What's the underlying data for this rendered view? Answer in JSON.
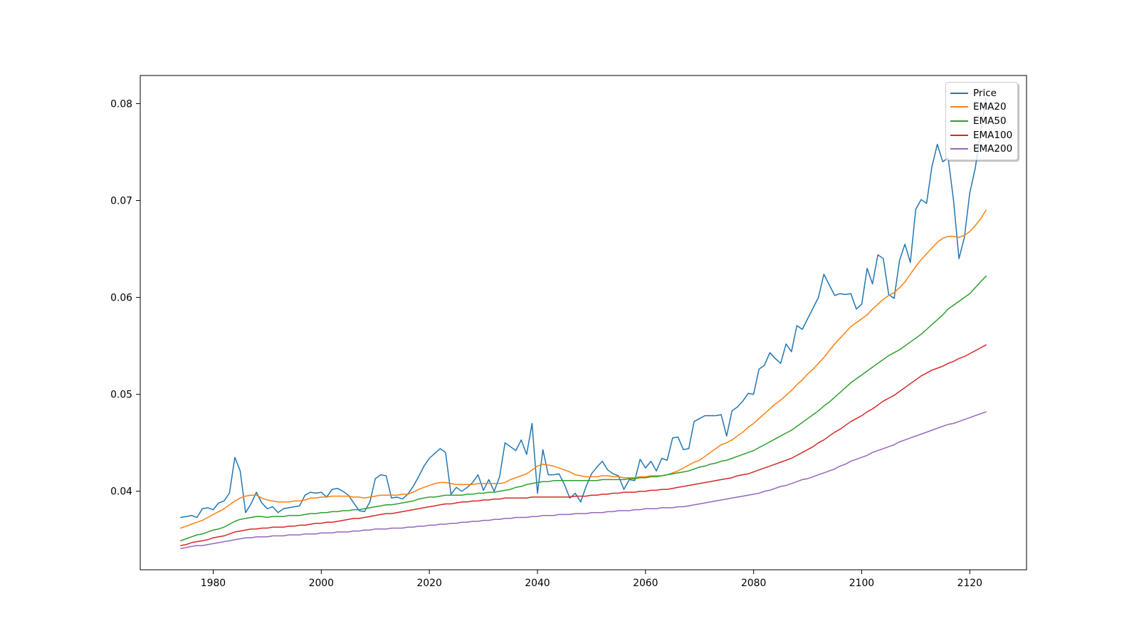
{
  "figure": {
    "background": "#ffffff"
  },
  "axes": {
    "x_ticks": [
      1980,
      2000,
      2020,
      2040,
      2060,
      2080,
      2100,
      2120
    ],
    "x_tick_labels": [
      "1980",
      "2000",
      "2020",
      "2040",
      "2060",
      "2080",
      "2100",
      "2120"
    ],
    "y_ticks": [
      0.04,
      0.05,
      0.06,
      0.07,
      0.08
    ],
    "y_tick_labels": [
      "0.04",
      "0.05",
      "0.06",
      "0.07",
      "0.08"
    ]
  },
  "legend": {
    "position": "upper right",
    "entries": [
      "Price",
      "EMA20",
      "EMA50",
      "EMA100",
      "EMA200"
    ]
  },
  "chart_data": {
    "type": "line",
    "title": "",
    "xlabel": "",
    "ylabel": "",
    "grid": false,
    "legend_position": "upper right",
    "xlim": [
      1966.5,
      2130.5
    ],
    "ylim": [
      0.0319,
      0.0829
    ],
    "x": [
      1974,
      1975,
      1976,
      1977,
      1978,
      1979,
      1980,
      1981,
      1982,
      1983,
      1984,
      1985,
      1986,
      1987,
      1988,
      1989,
      1990,
      1991,
      1992,
      1993,
      1994,
      1995,
      1996,
      1997,
      1998,
      1999,
      2000,
      2001,
      2002,
      2003,
      2004,
      2005,
      2006,
      2007,
      2008,
      2009,
      2010,
      2011,
      2012,
      2013,
      2014,
      2015,
      2016,
      2017,
      2018,
      2019,
      2020,
      2021,
      2022,
      2023,
      2024,
      2025,
      2026,
      2027,
      2028,
      2029,
      2030,
      2031,
      2032,
      2033,
      2034,
      2035,
      2036,
      2037,
      2038,
      2039,
      2040,
      2041,
      2042,
      2043,
      2044,
      2045,
      2046,
      2047,
      2048,
      2049,
      2050,
      2051,
      2052,
      2053,
      2054,
      2055,
      2056,
      2057,
      2058,
      2059,
      2060,
      2061,
      2062,
      2063,
      2064,
      2065,
      2066,
      2067,
      2068,
      2069,
      2070,
      2071,
      2072,
      2073,
      2074,
      2075,
      2076,
      2077,
      2078,
      2079,
      2080,
      2081,
      2082,
      2083,
      2084,
      2085,
      2086,
      2087,
      2088,
      2089,
      2090,
      2091,
      2092,
      2093,
      2094,
      2095,
      2096,
      2097,
      2098,
      2099,
      2100,
      2101,
      2102,
      2103,
      2104,
      2105,
      2106,
      2107,
      2108,
      2109,
      2110,
      2111,
      2112,
      2113,
      2114,
      2115,
      2116,
      2117,
      2118,
      2119,
      2120,
      2121,
      2122,
      2123
    ],
    "series": [
      {
        "name": "Price",
        "color": "#1f77b4",
        "values": [
          0.0373,
          0.0374,
          0.0375,
          0.0373,
          0.0382,
          0.0383,
          0.0381,
          0.0388,
          0.039,
          0.0398,
          0.0435,
          0.0421,
          0.0378,
          0.0387,
          0.0399,
          0.0388,
          0.0382,
          0.0384,
          0.0378,
          0.0382,
          0.0383,
          0.0384,
          0.0385,
          0.0396,
          0.0399,
          0.0398,
          0.0399,
          0.0394,
          0.0402,
          0.0403,
          0.04,
          0.0396,
          0.0388,
          0.038,
          0.0379,
          0.0389,
          0.0413,
          0.0417,
          0.0416,
          0.0393,
          0.0394,
          0.0392,
          0.0397,
          0.0405,
          0.0415,
          0.0426,
          0.0434,
          0.0439,
          0.0444,
          0.044,
          0.0397,
          0.0404,
          0.04,
          0.0404,
          0.0409,
          0.0417,
          0.0401,
          0.0412,
          0.04,
          0.0415,
          0.045,
          0.0446,
          0.0442,
          0.0453,
          0.0438,
          0.047,
          0.0398,
          0.0443,
          0.0417,
          0.0417,
          0.0418,
          0.0407,
          0.0393,
          0.0398,
          0.0389,
          0.0405,
          0.0418,
          0.0425,
          0.0431,
          0.0422,
          0.0418,
          0.0416,
          0.0402,
          0.0412,
          0.0411,
          0.0433,
          0.0424,
          0.0431,
          0.0421,
          0.0434,
          0.0432,
          0.0455,
          0.0456,
          0.0443,
          0.0444,
          0.0472,
          0.0475,
          0.0478,
          0.0478,
          0.0478,
          0.0479,
          0.0457,
          0.0483,
          0.0487,
          0.0493,
          0.0501,
          0.05,
          0.0526,
          0.053,
          0.0543,
          0.0537,
          0.0532,
          0.0552,
          0.0544,
          0.0571,
          0.0567,
          0.0578,
          0.0589,
          0.06,
          0.0624,
          0.0613,
          0.0602,
          0.0604,
          0.0603,
          0.0604,
          0.0588,
          0.0593,
          0.063,
          0.0614,
          0.0644,
          0.064,
          0.0603,
          0.0599,
          0.0638,
          0.0655,
          0.0636,
          0.0691,
          0.0701,
          0.0697,
          0.0735,
          0.0758,
          0.074,
          0.0744,
          0.07,
          0.064,
          0.0662,
          0.0708,
          0.0733,
          0.077,
          0.0806
        ]
      },
      {
        "name": "EMA20",
        "color": "#ff7f0e",
        "values": [
          0.0362,
          0.0364,
          0.0366,
          0.0368,
          0.037,
          0.0373,
          0.0376,
          0.0379,
          0.0382,
          0.0386,
          0.039,
          0.0393,
          0.0395,
          0.0396,
          0.0396,
          0.0393,
          0.0391,
          0.039,
          0.0389,
          0.0389,
          0.0389,
          0.039,
          0.039,
          0.0391,
          0.0393,
          0.0393,
          0.0394,
          0.0394,
          0.0395,
          0.0395,
          0.0395,
          0.0395,
          0.0394,
          0.0394,
          0.0393,
          0.0394,
          0.0395,
          0.0396,
          0.0396,
          0.0396,
          0.0396,
          0.0397,
          0.0397,
          0.0399,
          0.0402,
          0.0404,
          0.0406,
          0.0408,
          0.0409,
          0.0409,
          0.0408,
          0.0407,
          0.0407,
          0.0407,
          0.0407,
          0.0408,
          0.0408,
          0.0408,
          0.0408,
          0.0408,
          0.0409,
          0.0412,
          0.0414,
          0.0416,
          0.0418,
          0.0422,
          0.0426,
          0.0428,
          0.0427,
          0.0426,
          0.0424,
          0.0422,
          0.042,
          0.0417,
          0.0416,
          0.0415,
          0.0415,
          0.0415,
          0.0416,
          0.0416,
          0.0415,
          0.0415,
          0.0414,
          0.0414,
          0.0414,
          0.0415,
          0.0415,
          0.0416,
          0.0416,
          0.0416,
          0.0417,
          0.0419,
          0.0421,
          0.0424,
          0.0427,
          0.043,
          0.0432,
          0.0436,
          0.044,
          0.0444,
          0.0448,
          0.045,
          0.0453,
          0.0457,
          0.0461,
          0.0466,
          0.047,
          0.0475,
          0.048,
          0.0485,
          0.049,
          0.0494,
          0.0499,
          0.0504,
          0.051,
          0.0515,
          0.0521,
          0.0526,
          0.0532,
          0.0538,
          0.0545,
          0.0552,
          0.0558,
          0.0564,
          0.057,
          0.0574,
          0.0578,
          0.0582,
          0.0588,
          0.0593,
          0.0598,
          0.0602,
          0.0605,
          0.061,
          0.0616,
          0.0624,
          0.0632,
          0.0639,
          0.0645,
          0.0651,
          0.0657,
          0.0661,
          0.0663,
          0.0663,
          0.0662,
          0.0664,
          0.0668,
          0.0674,
          0.0681,
          0.069
        ]
      },
      {
        "name": "EMA50",
        "color": "#2ca02c",
        "values": [
          0.0349,
          0.0351,
          0.0353,
          0.0355,
          0.0356,
          0.0358,
          0.036,
          0.0361,
          0.0363,
          0.0366,
          0.0369,
          0.0371,
          0.0372,
          0.0373,
          0.0374,
          0.0374,
          0.0373,
          0.0374,
          0.0374,
          0.0374,
          0.0375,
          0.0375,
          0.0375,
          0.0376,
          0.0377,
          0.0377,
          0.0378,
          0.0378,
          0.0379,
          0.0379,
          0.038,
          0.038,
          0.0381,
          0.0381,
          0.0382,
          0.0383,
          0.0384,
          0.0385,
          0.0386,
          0.0386,
          0.0387,
          0.0388,
          0.0389,
          0.039,
          0.0392,
          0.0393,
          0.0394,
          0.0394,
          0.0395,
          0.0396,
          0.0396,
          0.0396,
          0.0396,
          0.0397,
          0.0397,
          0.0398,
          0.0398,
          0.0399,
          0.0399,
          0.04,
          0.0401,
          0.0402,
          0.0404,
          0.0405,
          0.0407,
          0.0408,
          0.0409,
          0.041,
          0.041,
          0.0411,
          0.0411,
          0.0411,
          0.0411,
          0.0411,
          0.0411,
          0.0411,
          0.0411,
          0.0411,
          0.0412,
          0.0412,
          0.0412,
          0.0412,
          0.0412,
          0.0413,
          0.0413,
          0.0414,
          0.0414,
          0.0415,
          0.0415,
          0.0416,
          0.0417,
          0.0418,
          0.0419,
          0.042,
          0.0421,
          0.0423,
          0.0425,
          0.0426,
          0.0428,
          0.0429,
          0.0431,
          0.0432,
          0.0434,
          0.0436,
          0.0438,
          0.044,
          0.0442,
          0.0445,
          0.0448,
          0.0451,
          0.0454,
          0.0457,
          0.046,
          0.0463,
          0.0467,
          0.0471,
          0.0475,
          0.0479,
          0.0483,
          0.0488,
          0.0492,
          0.0497,
          0.0502,
          0.0507,
          0.0512,
          0.0516,
          0.052,
          0.0524,
          0.0528,
          0.0532,
          0.0536,
          0.054,
          0.0543,
          0.0546,
          0.055,
          0.0554,
          0.0558,
          0.0562,
          0.0567,
          0.0572,
          0.0577,
          0.0582,
          0.0588,
          0.0592,
          0.0596,
          0.06,
          0.0604,
          0.061,
          0.0616,
          0.0622
        ]
      },
      {
        "name": "EMA100",
        "color": "#d62728",
        "values": [
          0.0344,
          0.0345,
          0.0347,
          0.0348,
          0.0349,
          0.035,
          0.0352,
          0.0353,
          0.0354,
          0.0356,
          0.0358,
          0.0359,
          0.036,
          0.0361,
          0.0361,
          0.0362,
          0.0362,
          0.0363,
          0.0363,
          0.0363,
          0.0364,
          0.0364,
          0.0365,
          0.0365,
          0.0366,
          0.0367,
          0.0367,
          0.0368,
          0.0368,
          0.0369,
          0.037,
          0.0371,
          0.0372,
          0.0372,
          0.0373,
          0.0374,
          0.0375,
          0.0376,
          0.0377,
          0.0377,
          0.0378,
          0.0379,
          0.038,
          0.0381,
          0.0382,
          0.0383,
          0.0384,
          0.0385,
          0.0386,
          0.0387,
          0.0387,
          0.0388,
          0.0389,
          0.0389,
          0.039,
          0.039,
          0.0391,
          0.0391,
          0.0392,
          0.0392,
          0.0393,
          0.0393,
          0.0393,
          0.0393,
          0.0393,
          0.0394,
          0.0394,
          0.0394,
          0.0394,
          0.0394,
          0.0394,
          0.0394,
          0.0394,
          0.0395,
          0.0395,
          0.0395,
          0.0396,
          0.0396,
          0.0397,
          0.0397,
          0.0398,
          0.0398,
          0.0399,
          0.0399,
          0.0399,
          0.04,
          0.04,
          0.0401,
          0.0401,
          0.0402,
          0.0402,
          0.0403,
          0.0404,
          0.0405,
          0.0406,
          0.0407,
          0.0408,
          0.0409,
          0.041,
          0.0411,
          0.0412,
          0.0413,
          0.0414,
          0.0416,
          0.0417,
          0.0418,
          0.042,
          0.0422,
          0.0424,
          0.0426,
          0.0428,
          0.043,
          0.0432,
          0.0434,
          0.0437,
          0.044,
          0.0443,
          0.0446,
          0.045,
          0.0453,
          0.0457,
          0.0461,
          0.0464,
          0.0468,
          0.0472,
          0.0475,
          0.0478,
          0.0482,
          0.0485,
          0.0489,
          0.0493,
          0.0496,
          0.0499,
          0.0503,
          0.0507,
          0.0511,
          0.0515,
          0.0519,
          0.0522,
          0.0525,
          0.0527,
          0.0529,
          0.0532,
          0.0534,
          0.0537,
          0.0539,
          0.0542,
          0.0545,
          0.0548,
          0.0551
        ]
      },
      {
        "name": "EMA200",
        "color": "#9467bd",
        "values": [
          0.0341,
          0.0342,
          0.0343,
          0.0344,
          0.0344,
          0.0345,
          0.0346,
          0.0347,
          0.0348,
          0.0349,
          0.035,
          0.0351,
          0.0352,
          0.0352,
          0.0353,
          0.0353,
          0.0353,
          0.0354,
          0.0354,
          0.0354,
          0.0355,
          0.0355,
          0.0355,
          0.0356,
          0.0356,
          0.0356,
          0.0357,
          0.0357,
          0.0357,
          0.0358,
          0.0358,
          0.0358,
          0.0359,
          0.0359,
          0.036,
          0.036,
          0.0361,
          0.0361,
          0.0361,
          0.0362,
          0.0362,
          0.0362,
          0.0363,
          0.0363,
          0.0364,
          0.0364,
          0.0365,
          0.0365,
          0.0366,
          0.0366,
          0.0367,
          0.0367,
          0.0368,
          0.0368,
          0.0369,
          0.0369,
          0.037,
          0.037,
          0.0371,
          0.0371,
          0.0372,
          0.0372,
          0.0373,
          0.0373,
          0.0373,
          0.0374,
          0.0374,
          0.0375,
          0.0375,
          0.0375,
          0.0376,
          0.0376,
          0.0376,
          0.0377,
          0.0377,
          0.0377,
          0.0378,
          0.0378,
          0.0378,
          0.0379,
          0.0379,
          0.038,
          0.038,
          0.038,
          0.0381,
          0.0381,
          0.0382,
          0.0382,
          0.0382,
          0.0383,
          0.0383,
          0.0383,
          0.0384,
          0.0384,
          0.0385,
          0.0386,
          0.0387,
          0.0388,
          0.0389,
          0.039,
          0.0391,
          0.0392,
          0.0393,
          0.0394,
          0.0395,
          0.0396,
          0.0397,
          0.0398,
          0.04,
          0.0401,
          0.0403,
          0.0405,
          0.0406,
          0.0408,
          0.041,
          0.0412,
          0.0413,
          0.0415,
          0.0417,
          0.0419,
          0.0421,
          0.0423,
          0.0426,
          0.0428,
          0.0431,
          0.0433,
          0.0435,
          0.0437,
          0.044,
          0.0442,
          0.0444,
          0.0446,
          0.0448,
          0.0451,
          0.0453,
          0.0455,
          0.0457,
          0.0459,
          0.0461,
          0.0463,
          0.0465,
          0.0467,
          0.0469,
          0.047,
          0.0472,
          0.0474,
          0.0476,
          0.0478,
          0.048,
          0.0482
        ]
      }
    ]
  }
}
